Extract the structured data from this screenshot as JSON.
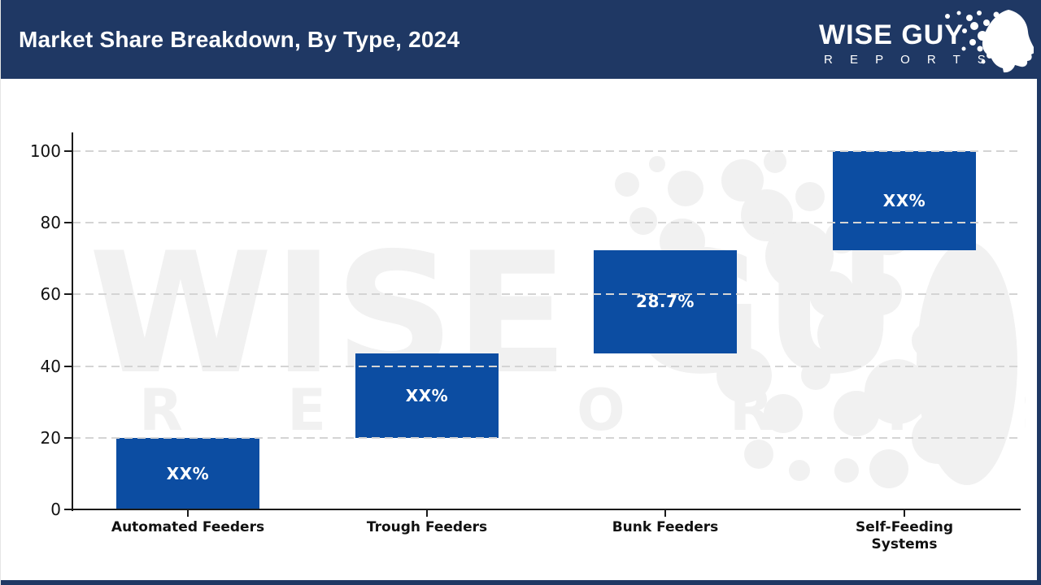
{
  "header": {
    "title": "Market Share Breakdown, By Type, 2024",
    "brand": {
      "name_top": "WISE GUY",
      "name_bottom": "R E P O R T S"
    }
  },
  "colors": {
    "header_bg": "#1f3864",
    "bar_fill": "#0c4da2",
    "bar_label_text": "#ffffff",
    "gridline": "#d4d4d4",
    "axis": "#1a1a1a",
    "tick_text": "#111111",
    "watermark": "#f1f1f1"
  },
  "watermark": {
    "line1": "WISE GU",
    "line2": "R E P O R T S"
  },
  "chart_data": {
    "type": "bar",
    "subtype": "floating-waterfall",
    "title": "Market Share Breakdown, By Type, 2024",
    "categories": [
      "Automated Feeders",
      "Trough Feeders",
      "Bunk Feeders",
      "Self-Feeding Systems"
    ],
    "category_display": [
      "Automated Feeders",
      "Trough Feeders",
      "Bunk Feeders",
      "Self-Feeding\nSystems"
    ],
    "segments": [
      {
        "category": "Automated Feeders",
        "start": 0,
        "end": 20,
        "label": "XX%"
      },
      {
        "category": "Trough Feeders",
        "start": 20,
        "end": 43.6,
        "label": "XX%"
      },
      {
        "category": "Bunk Feeders",
        "start": 43.6,
        "end": 72.3,
        "label": "28.7%"
      },
      {
        "category": "Self-Feeding Systems",
        "start": 72.3,
        "end": 100,
        "label": "XX%"
      }
    ],
    "xlabel": "",
    "ylabel": "",
    "ylim": [
      0,
      100
    ],
    "yticks": [
      0,
      20,
      40,
      60,
      80,
      100
    ],
    "grid": "dashed-horizontal-above-bars",
    "legend": "none"
  }
}
